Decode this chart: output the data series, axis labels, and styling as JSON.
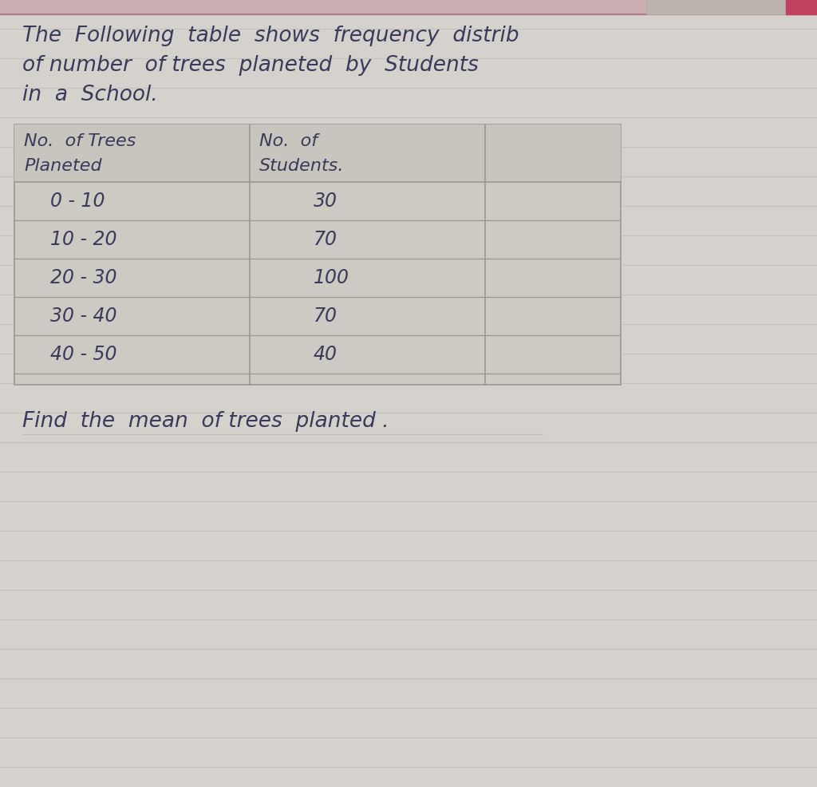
{
  "title_lines": [
    "The  Following  table  shows  frequency  distrib",
    "of number  of trees  planeted  by  Students",
    "in  a  School."
  ],
  "footer_text": "Find  the  mean  of trees  planted .",
  "col1_header_line1": "No.  of Trees",
  "col1_header_line2": "Planeted",
  "col2_header_line1": "No.  of",
  "col2_header_line2": "Students.",
  "rows": [
    [
      "0 - 10",
      "30"
    ],
    [
      "10 - 20",
      "70"
    ],
    [
      "20 - 30",
      "100"
    ],
    [
      "30 - 40",
      "70"
    ],
    [
      "40 - 50",
      "40"
    ]
  ],
  "bg_color": "#d8d5d0",
  "line_color": "#b8b4ae",
  "table_line_color": "#999990",
  "text_color": "#3a3a5a",
  "pink_stripe_color": "#c8a0aa",
  "notebook_line_color": "#c0bdb8",
  "figsize": [
    10.24,
    9.87
  ],
  "dpi": 100
}
